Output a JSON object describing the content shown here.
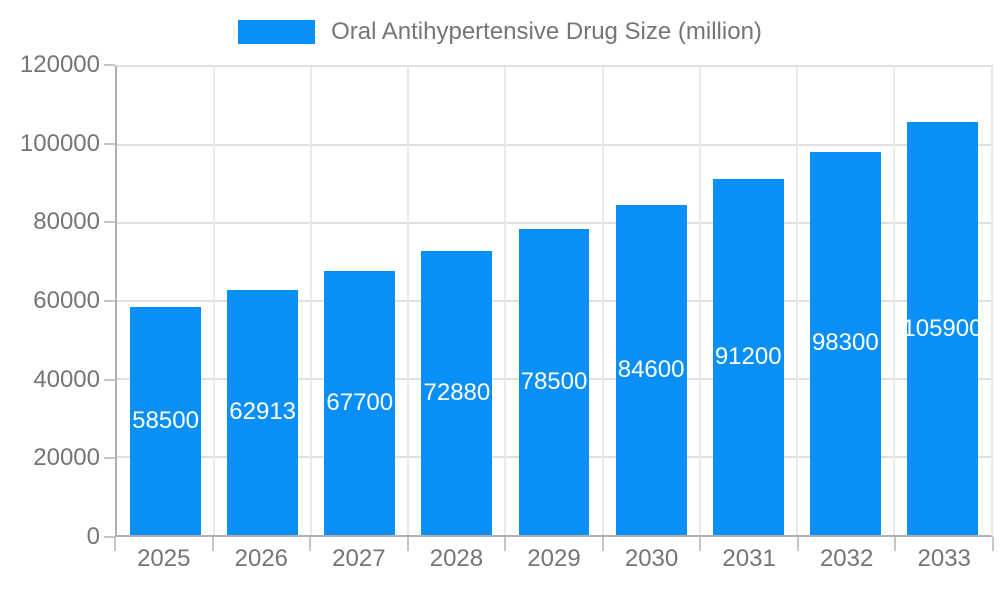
{
  "chart_data": {
    "type": "bar",
    "title": "Oral Antihypertensive Drug Size (million)",
    "categories": [
      "2025",
      "2026",
      "2027",
      "2028",
      "2029",
      "2030",
      "2031",
      "2032",
      "2033"
    ],
    "values": [
      58500,
      62913,
      67700,
      72880,
      78500,
      84600,
      91200,
      98300,
      105900
    ],
    "value_labels": [
      "58500",
      "62913",
      "67700",
      "72880",
      "78500",
      "84600",
      "91200",
      "98300",
      "105900"
    ],
    "xlabel": "",
    "ylabel": "",
    "ylim": [
      0,
      120000
    ],
    "yticks": [
      0,
      20000,
      40000,
      60000,
      80000,
      100000,
      120000
    ],
    "ytick_labels": [
      "0",
      "20000",
      "40000",
      "60000",
      "80000",
      "100000",
      "120000"
    ],
    "grid": true,
    "legend_position": "top",
    "bar_label_position": "center"
  },
  "colors": {
    "bar": "#0990F8",
    "bar_label": "#FFFFFF",
    "axis_line": "#B0B0B0",
    "gridline_h": "#E0E0E0",
    "gridline_v": "#E9E9E9",
    "tick_text": "#757575",
    "legend_text": "#757575",
    "background": "#FFFFFF"
  }
}
